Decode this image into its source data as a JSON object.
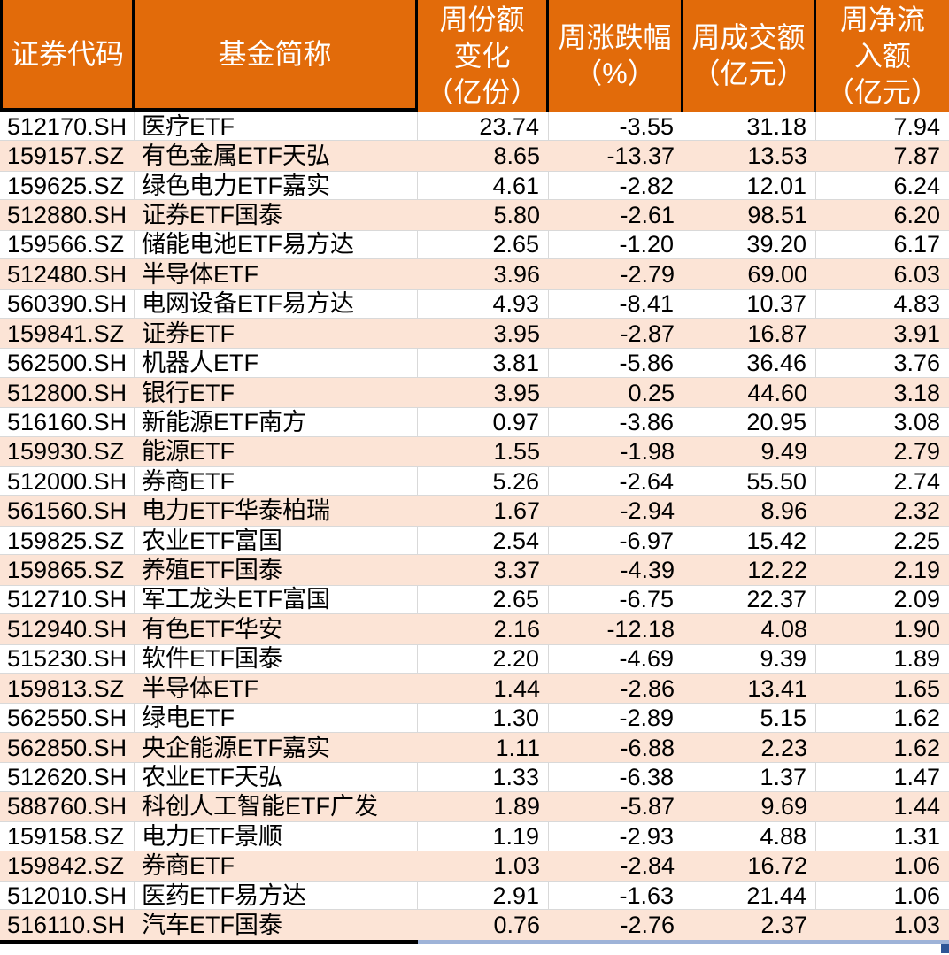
{
  "table": {
    "columns": [
      {
        "key": "code",
        "label": "证券代码",
        "label_lines": [
          "证券代码"
        ],
        "align": "left"
      },
      {
        "key": "name",
        "label": "基金简称",
        "label_lines": [
          "基金简称"
        ],
        "align": "left"
      },
      {
        "key": "share_change",
        "label": "周份额变化（亿份）",
        "label_lines": [
          "周份额",
          "变化",
          "（亿份）"
        ],
        "align": "right"
      },
      {
        "key": "pct_change",
        "label": "周涨跌幅（%）",
        "label_lines": [
          "周涨跌幅",
          "（%）"
        ],
        "align": "right"
      },
      {
        "key": "turnover",
        "label": "周成交额（亿元）",
        "label_lines": [
          "周成交额",
          "（亿元）"
        ],
        "align": "right"
      },
      {
        "key": "net_inflow",
        "label": "周净流入额（亿元）",
        "label_lines": [
          "周净流",
          "入额",
          "（亿元）"
        ],
        "align": "right"
      }
    ],
    "rows": [
      {
        "code": "512170.SH",
        "name": "医疗ETF",
        "share_change": "23.74",
        "pct_change": "-3.55",
        "turnover": "31.18",
        "net_inflow": "7.94"
      },
      {
        "code": "159157.SZ",
        "name": "有色金属ETF天弘",
        "share_change": "8.65",
        "pct_change": "-13.37",
        "turnover": "13.53",
        "net_inflow": "7.87"
      },
      {
        "code": "159625.SZ",
        "name": "绿色电力ETF嘉实",
        "share_change": "4.61",
        "pct_change": "-2.82",
        "turnover": "12.01",
        "net_inflow": "6.24"
      },
      {
        "code": "512880.SH",
        "name": "证券ETF国泰",
        "share_change": "5.80",
        "pct_change": "-2.61",
        "turnover": "98.51",
        "net_inflow": "6.20"
      },
      {
        "code": "159566.SZ",
        "name": "储能电池ETF易方达",
        "share_change": "2.65",
        "pct_change": "-1.20",
        "turnover": "39.20",
        "net_inflow": "6.17"
      },
      {
        "code": "512480.SH",
        "name": "半导体ETF",
        "share_change": "3.96",
        "pct_change": "-2.79",
        "turnover": "69.00",
        "net_inflow": "6.03"
      },
      {
        "code": "560390.SH",
        "name": "电网设备ETF易方达",
        "share_change": "4.93",
        "pct_change": "-8.41",
        "turnover": "10.37",
        "net_inflow": "4.83"
      },
      {
        "code": "159841.SZ",
        "name": "证券ETF",
        "share_change": "3.95",
        "pct_change": "-2.87",
        "turnover": "16.87",
        "net_inflow": "3.91"
      },
      {
        "code": "562500.SH",
        "name": "机器人ETF",
        "share_change": "3.81",
        "pct_change": "-5.86",
        "turnover": "36.46",
        "net_inflow": "3.76"
      },
      {
        "code": "512800.SH",
        "name": "银行ETF",
        "share_change": "3.95",
        "pct_change": "0.25",
        "turnover": "44.60",
        "net_inflow": "3.18"
      },
      {
        "code": "516160.SH",
        "name": "新能源ETF南方",
        "share_change": "0.97",
        "pct_change": "-3.86",
        "turnover": "20.95",
        "net_inflow": "3.08"
      },
      {
        "code": "159930.SZ",
        "name": "能源ETF",
        "share_change": "1.55",
        "pct_change": "-1.98",
        "turnover": "9.49",
        "net_inflow": "2.79"
      },
      {
        "code": "512000.SH",
        "name": "券商ETF",
        "share_change": "5.26",
        "pct_change": "-2.64",
        "turnover": "55.50",
        "net_inflow": "2.74"
      },
      {
        "code": "561560.SH",
        "name": "电力ETF华泰柏瑞",
        "share_change": "1.67",
        "pct_change": "-2.94",
        "turnover": "8.96",
        "net_inflow": "2.32"
      },
      {
        "code": "159825.SZ",
        "name": "农业ETF富国",
        "share_change": "2.54",
        "pct_change": "-6.97",
        "turnover": "15.42",
        "net_inflow": "2.25"
      },
      {
        "code": "159865.SZ",
        "name": "养殖ETF国泰",
        "share_change": "3.37",
        "pct_change": "-4.39",
        "turnover": "12.22",
        "net_inflow": "2.19"
      },
      {
        "code": "512710.SH",
        "name": "军工龙头ETF富国",
        "share_change": "2.65",
        "pct_change": "-6.75",
        "turnover": "22.37",
        "net_inflow": "2.09"
      },
      {
        "code": "512940.SH",
        "name": "有色ETF华安",
        "share_change": "2.16",
        "pct_change": "-12.18",
        "turnover": "4.08",
        "net_inflow": "1.90"
      },
      {
        "code": "515230.SH",
        "name": "软件ETF国泰",
        "share_change": "2.20",
        "pct_change": "-4.69",
        "turnover": "9.39",
        "net_inflow": "1.89"
      },
      {
        "code": "159813.SZ",
        "name": "半导体ETF",
        "share_change": "1.44",
        "pct_change": "-2.86",
        "turnover": "13.41",
        "net_inflow": "1.65"
      },
      {
        "code": "562550.SH",
        "name": "绿电ETF",
        "share_change": "1.30",
        "pct_change": "-2.89",
        "turnover": "5.15",
        "net_inflow": "1.62"
      },
      {
        "code": "562850.SH",
        "name": "央企能源ETF嘉实",
        "share_change": "1.11",
        "pct_change": "-6.88",
        "turnover": "2.23",
        "net_inflow": "1.62"
      },
      {
        "code": "512620.SH",
        "name": "农业ETF天弘",
        "share_change": "1.33",
        "pct_change": "-6.38",
        "turnover": "1.37",
        "net_inflow": "1.47"
      },
      {
        "code": "588760.SH",
        "name": "科创人工智能ETF广发",
        "share_change": "1.89",
        "pct_change": "-5.87",
        "turnover": "9.69",
        "net_inflow": "1.44"
      },
      {
        "code": "159158.SZ",
        "name": "电力ETF景顺",
        "share_change": "1.19",
        "pct_change": "-2.93",
        "turnover": "4.88",
        "net_inflow": "1.31"
      },
      {
        "code": "159842.SZ",
        "name": "券商ETF",
        "share_change": "1.03",
        "pct_change": "-2.84",
        "turnover": "16.72",
        "net_inflow": "1.06"
      },
      {
        "code": "512010.SH",
        "name": "医药ETF易方达",
        "share_change": "2.91",
        "pct_change": "-1.63",
        "turnover": "21.44",
        "net_inflow": "1.06"
      },
      {
        "code": "516110.SH",
        "name": "汽车ETF国泰",
        "share_change": "0.76",
        "pct_change": "-2.76",
        "turnover": "2.37",
        "net_inflow": "1.03"
      }
    ]
  },
  "colors": {
    "header_bg": "#E26B0A",
    "header_text": "#FFFFFF",
    "stripe_bg": "#FCE4D6",
    "white_bg": "#FFFFFF",
    "grid_line": "#D9D9D9",
    "header_divider": "#000000",
    "selection_border_black": "#000000",
    "selection_border_blue": "#9EB3D8",
    "fill_handle": "#2E5596",
    "text": "#000000"
  }
}
